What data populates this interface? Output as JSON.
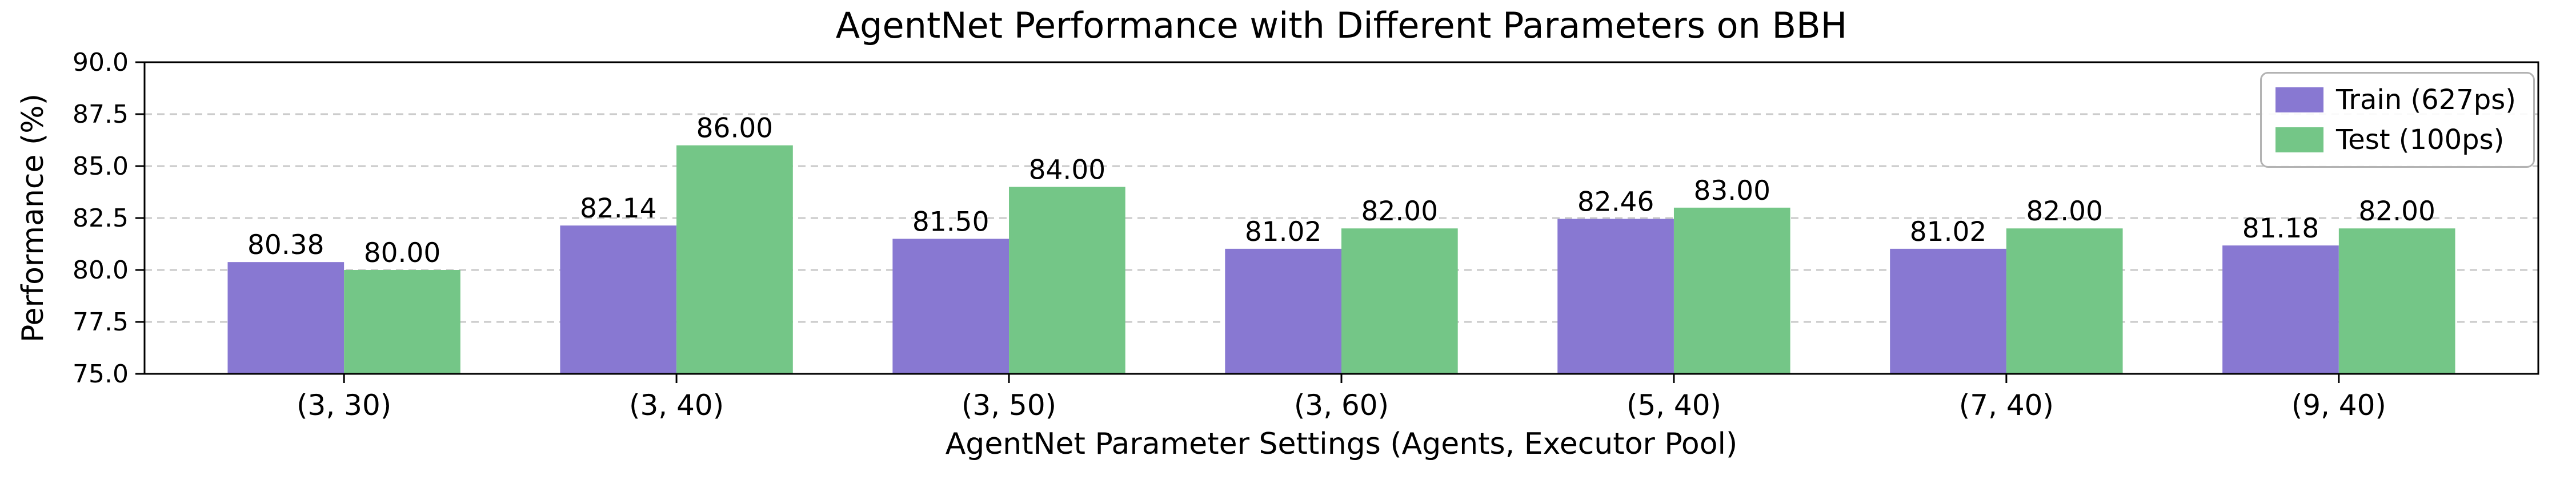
{
  "chart_data": {
    "type": "bar",
    "title": "AgentNet Performance with Different Parameters on BBH",
    "xlabel": "AgentNet Parameter Settings (Agents, Executor Pool)",
    "ylabel": "Performance (%)",
    "categories": [
      "(3, 30)",
      "(3, 40)",
      "(3, 50)",
      "(3, 60)",
      "(5, 40)",
      "(7, 40)",
      "(9, 40)"
    ],
    "series": [
      {
        "name": "Train (627ps)",
        "color": "#8878d2",
        "values": [
          80.38,
          82.14,
          81.5,
          81.02,
          82.46,
          81.02,
          81.18
        ]
      },
      {
        "name": "Test (100ps)",
        "color": "#74c687",
        "values": [
          80.0,
          86.0,
          84.0,
          82.0,
          83.0,
          82.0,
          82.0
        ]
      }
    ],
    "ylim": [
      75.0,
      90.0
    ],
    "yticks": [
      75.0,
      77.5,
      80.0,
      82.5,
      85.0,
      87.5,
      90.0
    ],
    "value_label_decimals": 2,
    "ytick_decimals": 1,
    "grid": "dashed-horizontal",
    "grid_color": "#c9c9c9",
    "legend_position": "upper-right",
    "axis_color": "#000000"
  }
}
